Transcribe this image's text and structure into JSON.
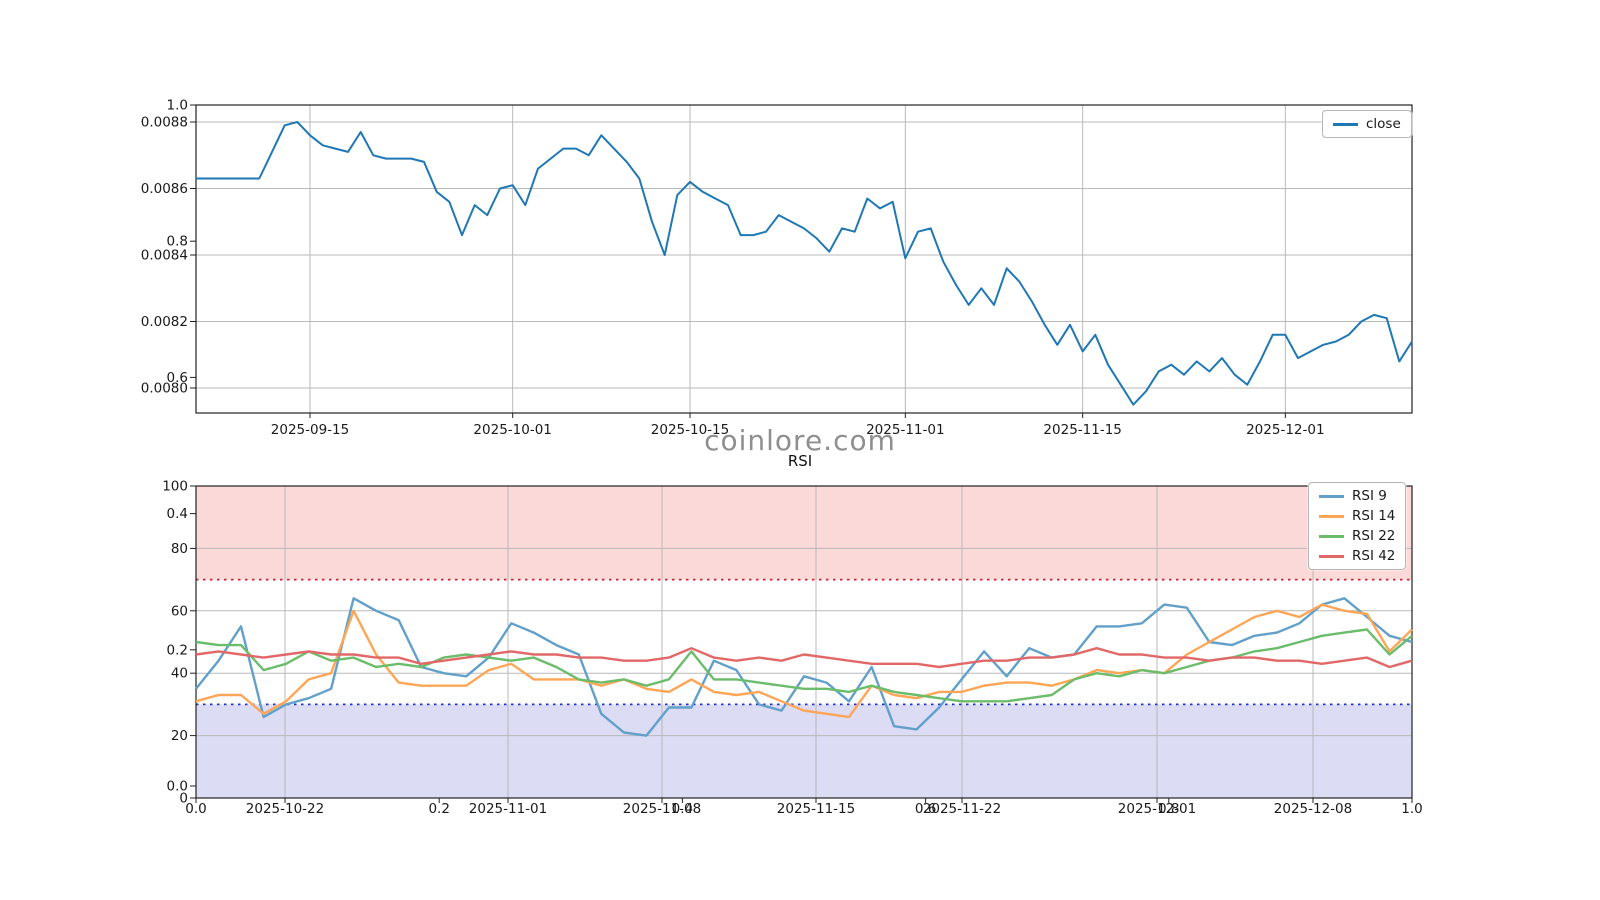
{
  "watermark": "coinlore.com",
  "overlay_axis": {
    "x_labels": [
      "0.0",
      "0.2",
      "0.4",
      "0.6",
      "0.8",
      "1.0"
    ],
    "y_labels": [
      "1.0",
      "0.8",
      "0.6",
      "0.4",
      "0.2",
      "0.0"
    ]
  },
  "chart_data": [
    {
      "type": "line",
      "title": "",
      "ylabel": "",
      "xlabel": "",
      "ylim": [
        0.00792,
        0.00885
      ],
      "grid": true,
      "legend_position": "upper right",
      "y_ticks": [
        0.0088,
        0.0086,
        0.0084,
        0.0082,
        0.008
      ],
      "y_tick_labels": [
        "0.0088",
        "0.0086",
        "0.0084",
        "0.0082",
        "0.0080"
      ],
      "x_tick_labels": [
        "2025-09-15",
        "2025-10-01",
        "2025-10-15",
        "2025-11-01",
        "2025-11-15",
        "2025-12-01"
      ],
      "x_tick_indices": [
        9,
        25,
        39,
        56,
        70,
        86
      ],
      "series": [
        {
          "name": "close",
          "color": "#1f77b4",
          "start_date": "2025-09-06",
          "end_date": "2025-12-11",
          "values": [
            0.00863,
            0.00863,
            0.00863,
            0.00863,
            0.00863,
            0.00863,
            0.00871,
            0.00879,
            0.0088,
            0.00876,
            0.00873,
            0.00872,
            0.00871,
            0.00877,
            0.0087,
            0.00869,
            0.00869,
            0.00869,
            0.00868,
            0.00859,
            0.00856,
            0.00846,
            0.00855,
            0.00852,
            0.0086,
            0.00861,
            0.00855,
            0.00866,
            0.00869,
            0.00872,
            0.00872,
            0.0087,
            0.00876,
            0.00872,
            0.00868,
            0.00863,
            0.0085,
            0.0084,
            0.00858,
            0.00862,
            0.00859,
            0.00857,
            0.00855,
            0.00846,
            0.00846,
            0.00847,
            0.00852,
            0.0085,
            0.00848,
            0.00845,
            0.00841,
            0.00848,
            0.00847,
            0.00857,
            0.00854,
            0.00856,
            0.00839,
            0.00847,
            0.00848,
            0.00838,
            0.00831,
            0.00825,
            0.0083,
            0.00825,
            0.00836,
            0.00832,
            0.00826,
            0.00819,
            0.00813,
            0.00819,
            0.00811,
            0.00816,
            0.00807,
            0.00801,
            0.00795,
            0.00799,
            0.00805,
            0.00807,
            0.00804,
            0.00808,
            0.00805,
            0.00809,
            0.00804,
            0.00801,
            0.00808,
            0.00816,
            0.00816,
            0.00809,
            0.00811,
            0.00813,
            0.00814,
            0.00816,
            0.0082,
            0.00822,
            0.00821,
            0.00808,
            0.00814
          ]
        }
      ]
    },
    {
      "type": "line",
      "title": "RSI",
      "ylabel": "",
      "xlabel": "",
      "ylim": [
        0,
        100
      ],
      "grid": true,
      "legend_position": "upper right",
      "overbought_level": 70,
      "oversold_level": 30,
      "overbought_band_color": "#fbd9d9",
      "oversold_band_color": "#dcdcf4",
      "overbought_line_color": "#cc2233",
      "oversold_line_color": "#2233cc",
      "y_ticks": [
        100,
        80,
        60,
        40,
        20,
        0
      ],
      "y_tick_labels": [
        "100",
        "80",
        "60",
        "40",
        "20",
        "0"
      ],
      "x_tick_labels": [
        "2025-10-22",
        "2025-11-01",
        "2025-11-08",
        "2025-11-15",
        "2025-11-22",
        "2025-12-01",
        "2025-12-08"
      ],
      "series": [
        {
          "name": "RSI 9",
          "color": "#62a0ca",
          "start_date": "2025-10-18",
          "end_date": "2025-12-11",
          "values": [
            35,
            44,
            55,
            26,
            30,
            32,
            35,
            64,
            60,
            57,
            42,
            40,
            39,
            45,
            56,
            53,
            49,
            46,
            27,
            21,
            20,
            29,
            29,
            44,
            41,
            30,
            28,
            39,
            37,
            31,
            42,
            23,
            22,
            29,
            38,
            47,
            39,
            48,
            45,
            46,
            55,
            55,
            56,
            62,
            61,
            50,
            49,
            52,
            53,
            56,
            62,
            64,
            58,
            52,
            50
          ]
        },
        {
          "name": "RSI 14",
          "color": "#ffa556",
          "start_date": "2025-10-18",
          "end_date": "2025-12-11",
          "values": [
            31,
            33,
            33,
            27,
            31,
            38,
            40,
            60,
            46,
            37,
            36,
            36,
            36,
            41,
            43,
            38,
            38,
            38,
            36,
            38,
            35,
            34,
            38,
            34,
            33,
            34,
            31,
            28,
            27,
            26,
            36,
            33,
            32,
            34,
            34,
            36,
            37,
            37,
            36,
            38,
            41,
            40,
            41,
            40,
            46,
            50,
            54,
            58,
            60,
            58,
            62,
            60,
            59,
            47,
            54
          ]
        },
        {
          "name": "RSI 22",
          "color": "#6bbc6b",
          "start_date": "2025-10-18",
          "end_date": "2025-12-11",
          "values": [
            50,
            49,
            49,
            41,
            43,
            47,
            44,
            45,
            42,
            43,
            42,
            45,
            46,
            45,
            44,
            45,
            42,
            38,
            37,
            38,
            36,
            38,
            47,
            38,
            38,
            37,
            36,
            35,
            35,
            34,
            36,
            34,
            33,
            32,
            31,
            31,
            31,
            32,
            33,
            38,
            40,
            39,
            41,
            40,
            42,
            44,
            45,
            47,
            48,
            50,
            52,
            53,
            54,
            46,
            52
          ]
        },
        {
          "name": "RSI 42",
          "color": "#e26868",
          "start_date": "2025-10-18",
          "end_date": "2025-12-11",
          "values": [
            46,
            47,
            46,
            45,
            46,
            47,
            46,
            46,
            45,
            45,
            43,
            44,
            45,
            46,
            47,
            46,
            46,
            45,
            45,
            44,
            44,
            45,
            48,
            45,
            44,
            45,
            44,
            46,
            45,
            44,
            43,
            43,
            43,
            42,
            43,
            44,
            44,
            45,
            45,
            46,
            48,
            46,
            46,
            45,
            45,
            44,
            45,
            45,
            44,
            44,
            43,
            44,
            45,
            42,
            44
          ]
        }
      ]
    }
  ]
}
